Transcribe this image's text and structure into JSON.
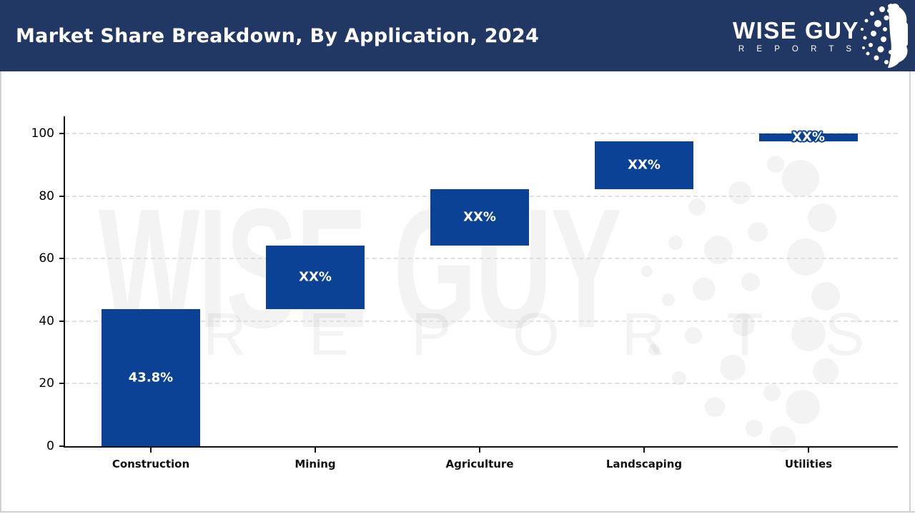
{
  "header": {
    "title": "Market Share Breakdown, By Application, 2024",
    "logo": {
      "wordmark": "WISE GUY",
      "subtitle": "R E P O R T S"
    }
  },
  "watermark": {
    "line1": "WISE GUY",
    "line2": "R E P O R T S"
  },
  "colors": {
    "header_bg": "#213764",
    "bar": "#0b4296",
    "grid": "#e0e0e0",
    "axis": "#111111",
    "page_border": "#d2d2d2",
    "bar_label": "#ffffff",
    "title_text": "#ffffff"
  },
  "chart_data": {
    "type": "bar",
    "subtype": "waterfall",
    "title": "Market Share Breakdown, By Application, 2024",
    "categories": [
      "Construction",
      "Mining",
      "Agriculture",
      "Landscaping",
      "Utilities"
    ],
    "segments": [
      {
        "category": "Construction",
        "start": 0,
        "end": 43.8,
        "label": "43.8%"
      },
      {
        "category": "Mining",
        "start": 43.8,
        "end": 64.2,
        "label": "XX%"
      },
      {
        "category": "Agriculture",
        "start": 64.2,
        "end": 82.2,
        "label": "XX%"
      },
      {
        "category": "Landscaping",
        "start": 82.2,
        "end": 97.5,
        "label": "XX%"
      },
      {
        "category": "Utilities",
        "start": 97.5,
        "end": 100,
        "label": "XX%"
      }
    ],
    "xlabel": "",
    "ylabel": "",
    "ylim": [
      0,
      100
    ],
    "yticks": [
      0,
      20,
      40,
      60,
      80,
      100
    ],
    "grid": "horizontal-dashed",
    "legend": "none"
  }
}
